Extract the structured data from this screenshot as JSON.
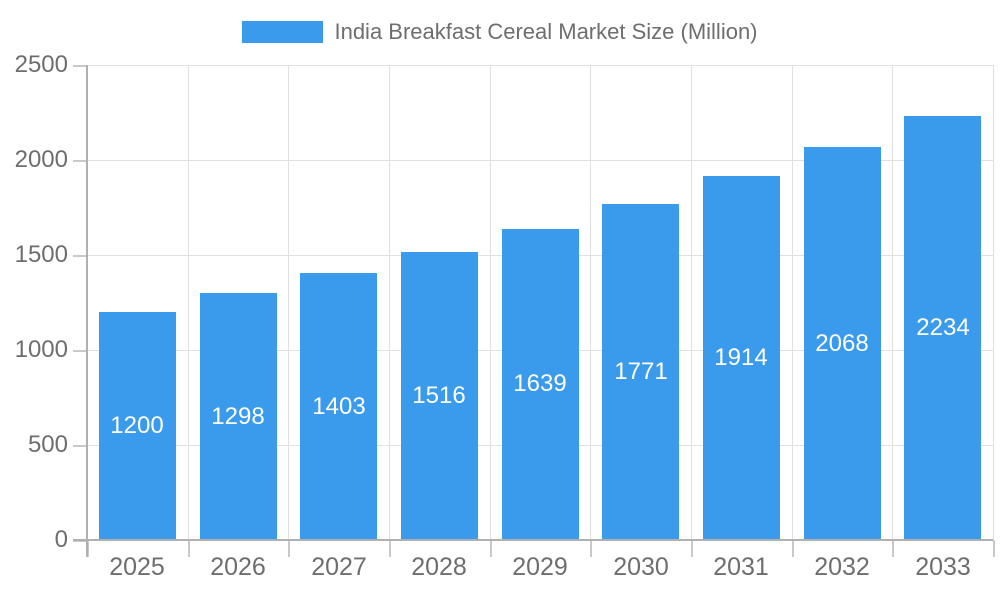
{
  "legend": {
    "label": "India Breakfast Cereal Market Size (Million)"
  },
  "chart_data": {
    "type": "bar",
    "title": "",
    "xlabel": "",
    "ylabel": "",
    "categories": [
      "2025",
      "2026",
      "2027",
      "2028",
      "2029",
      "2030",
      "2031",
      "2032",
      "2033"
    ],
    "values": [
      1200,
      1298,
      1403,
      1516,
      1639,
      1771,
      1914,
      2068,
      2234
    ],
    "series_name": "India Breakfast Cereal Market Size (Million)",
    "value_labels_shown": true,
    "ylim": [
      0,
      2500
    ],
    "yticks": [
      0,
      500,
      1000,
      1500,
      2000,
      2500
    ],
    "grid": true,
    "legend_position": "top-center"
  },
  "colors": {
    "bar": "#3a9aec",
    "axis_text": "#6e6e6e",
    "grid": "#e0e0e0",
    "axis_line": "#b0b0b0",
    "tick": "#c9c9c9",
    "value_label": "#ffffff"
  }
}
